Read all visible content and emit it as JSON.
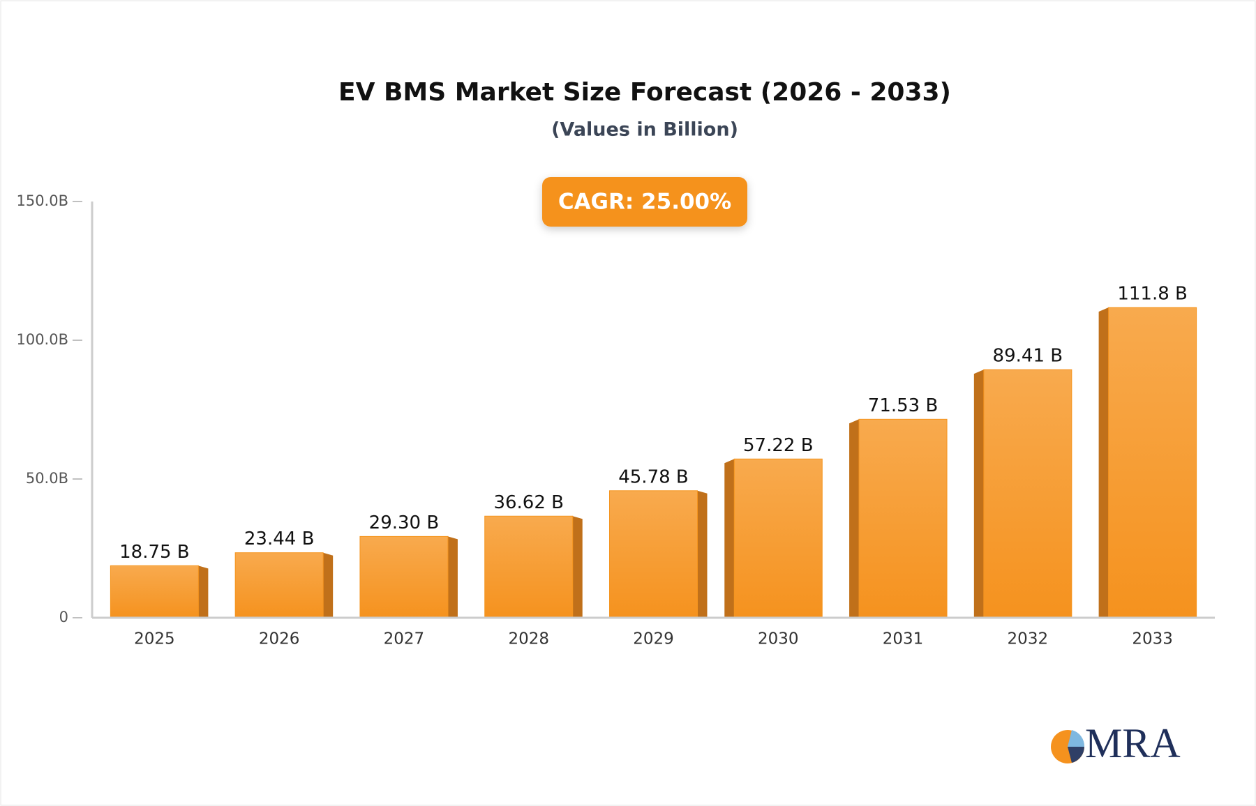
{
  "chart_data": {
    "type": "bar",
    "title": "EV BMS Market Size Forecast (2026 - 2033)",
    "subtitle": "(Values in Billion)",
    "annotation": "CAGR: 25.00%",
    "logo": "MRA",
    "categories": [
      "2025",
      "2026",
      "2027",
      "2028",
      "2029",
      "2030",
      "2031",
      "2032",
      "2033"
    ],
    "values": [
      18.75,
      23.44,
      29.3,
      36.62,
      45.78,
      57.22,
      71.53,
      89.41,
      111.8
    ],
    "value_labels": [
      "18.75 B",
      "23.44 B",
      "29.30 B",
      "36.62 B",
      "45.78 B",
      "57.22 B",
      "71.53 B",
      "89.41 B",
      "111.8 B"
    ],
    "color": "#f5951f",
    "ylim": [
      0,
      150
    ],
    "yticks": [
      0,
      {
        "value": 50,
        "label": "50.0B"
      },
      {
        "value": 100,
        "label": "100.0B"
      },
      {
        "value": 150,
        "label": "150.0B"
      }
    ],
    "grid": false
  }
}
